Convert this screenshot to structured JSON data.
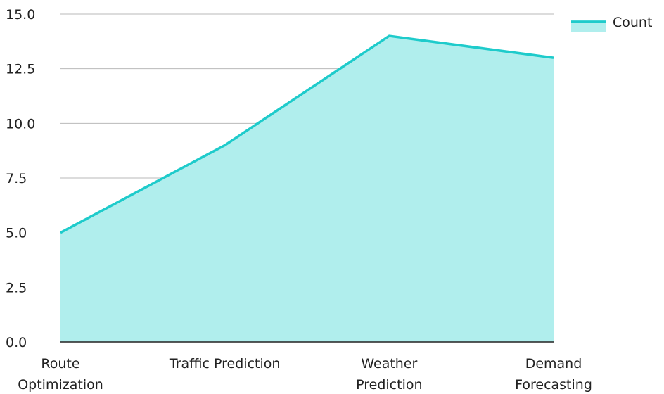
{
  "chart_data": {
    "type": "area",
    "categories": [
      [
        "Route",
        "Optimization"
      ],
      [
        "Traffic Prediction"
      ],
      [
        "Weather",
        "Prediction"
      ],
      [
        "Demand",
        "Forecasting"
      ]
    ],
    "series": [
      {
        "name": "Count",
        "values": [
          5,
          9,
          14,
          13
        ]
      }
    ],
    "ylim": [
      0,
      15
    ],
    "yticks": [
      "0.0",
      "2.5",
      "5.0",
      "7.5",
      "10.0",
      "12.5",
      "15.0"
    ],
    "grid": true,
    "legend": "top-right",
    "colors": {
      "line": "#1ecbcb",
      "fill": "#b0eeed"
    }
  }
}
